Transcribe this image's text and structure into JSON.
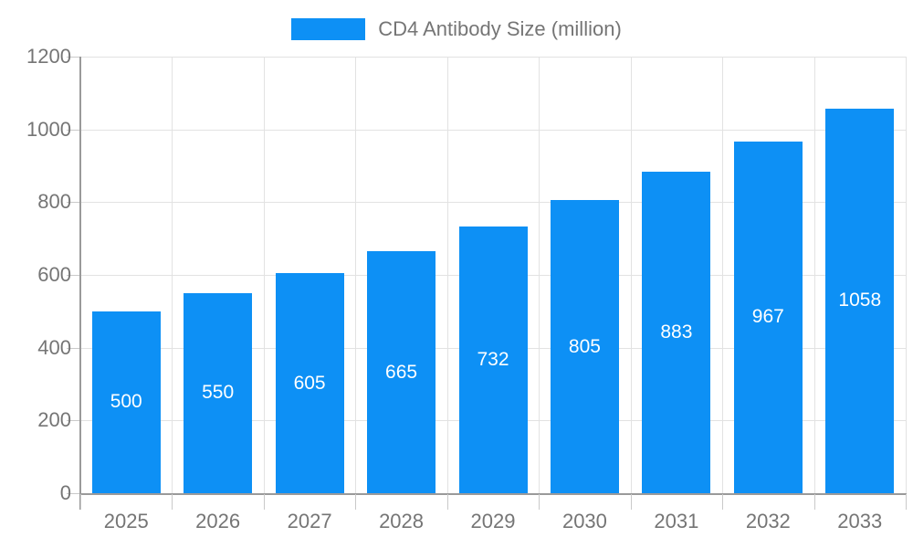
{
  "chart_data": {
    "type": "bar",
    "title": "",
    "legend": {
      "label": "CD4 Antibody Size (million)",
      "position": "top"
    },
    "categories": [
      "2025",
      "2026",
      "2027",
      "2028",
      "2029",
      "2030",
      "2031",
      "2032",
      "2033"
    ],
    "series": [
      {
        "name": "CD4 Antibody Size (million)",
        "values": [
          500,
          550,
          605,
          665,
          732,
          805,
          883,
          967,
          1058
        ]
      }
    ],
    "value_labels_shown": true,
    "xlabel": "",
    "ylabel": "",
    "ylim": [
      0,
      1200
    ],
    "ytick_step": 200,
    "yticks": [
      "0",
      "200",
      "400",
      "600",
      "800",
      "1000",
      "1200"
    ],
    "grid": true,
    "colors": {
      "bar": "#0d90f5",
      "value_label": "#ffffff",
      "axis_text": "#757575",
      "legend_text": "#757575",
      "gridline": "#e2e2e2",
      "axis_line": "#9a9a9a",
      "tick": "#c9c9c9",
      "background": "#ffffff"
    }
  }
}
